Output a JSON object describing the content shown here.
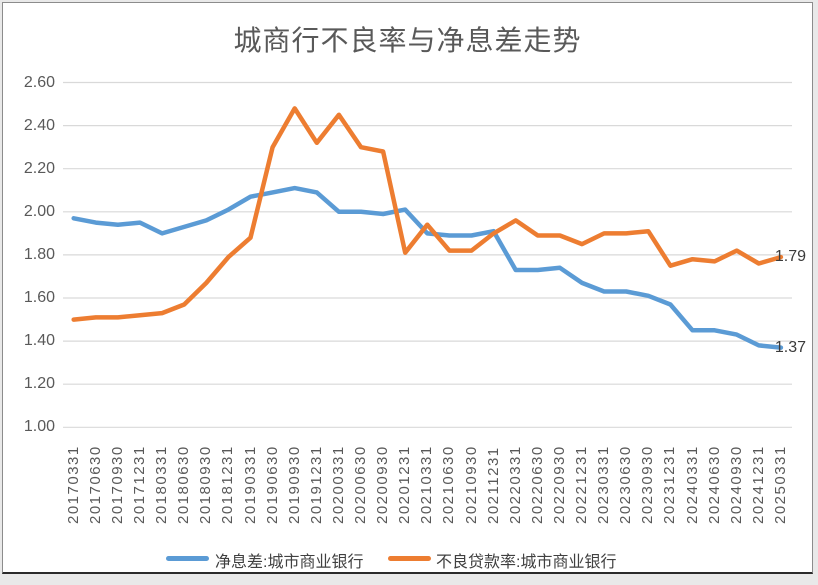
{
  "chart_data": {
    "type": "line",
    "title": "城商行不良率与净息差走势",
    "categories": [
      "20170331",
      "20170630",
      "20170930",
      "20171231",
      "20180331",
      "20180630",
      "20180930",
      "20181231",
      "20190331",
      "20190630",
      "20190930",
      "20191231",
      "20200331",
      "20200630",
      "20200930",
      "20201231",
      "20210331",
      "20210630",
      "20210930",
      "20211231",
      "20220331",
      "20220630",
      "20220930",
      "20221231",
      "20230331",
      "20230630",
      "20230930",
      "20231231",
      "20240331",
      "20240630",
      "20240930",
      "20241231",
      "20250331"
    ],
    "series": [
      {
        "name": "净息差:城市商业银行",
        "color": "#5B9BD5",
        "values": [
          1.97,
          1.95,
          1.94,
          1.95,
          1.9,
          1.93,
          1.96,
          2.01,
          2.07,
          2.09,
          2.11,
          2.09,
          2.0,
          2.0,
          1.99,
          2.01,
          1.9,
          1.89,
          1.89,
          1.91,
          1.73,
          1.73,
          1.74,
          1.67,
          1.63,
          1.63,
          1.61,
          1.57,
          1.45,
          1.45,
          1.43,
          1.38,
          1.37
        ]
      },
      {
        "name": "不良贷款率:城市商业银行",
        "color": "#ED7D31",
        "values": [
          1.5,
          1.51,
          1.51,
          1.52,
          1.53,
          1.57,
          1.67,
          1.79,
          1.88,
          2.3,
          2.48,
          2.32,
          2.45,
          2.3,
          2.28,
          1.81,
          1.94,
          1.82,
          1.82,
          1.9,
          1.96,
          1.89,
          1.89,
          1.85,
          1.9,
          1.9,
          1.91,
          1.75,
          1.78,
          1.77,
          1.82,
          1.76,
          1.79
        ]
      }
    ],
    "ylim": [
      1.0,
      2.6
    ],
    "ytick_step": 0.2,
    "yticks": [
      "2.60",
      "2.40",
      "2.20",
      "2.00",
      "1.80",
      "1.60",
      "1.40",
      "1.20",
      "1.00"
    ],
    "grid": "horizontal",
    "gridline_color": "#D9D9D9",
    "legend_position": "bottom",
    "end_labels": [
      {
        "series_index": 1,
        "text": "1.79"
      },
      {
        "series_index": 0,
        "text": "1.37"
      }
    ]
  }
}
